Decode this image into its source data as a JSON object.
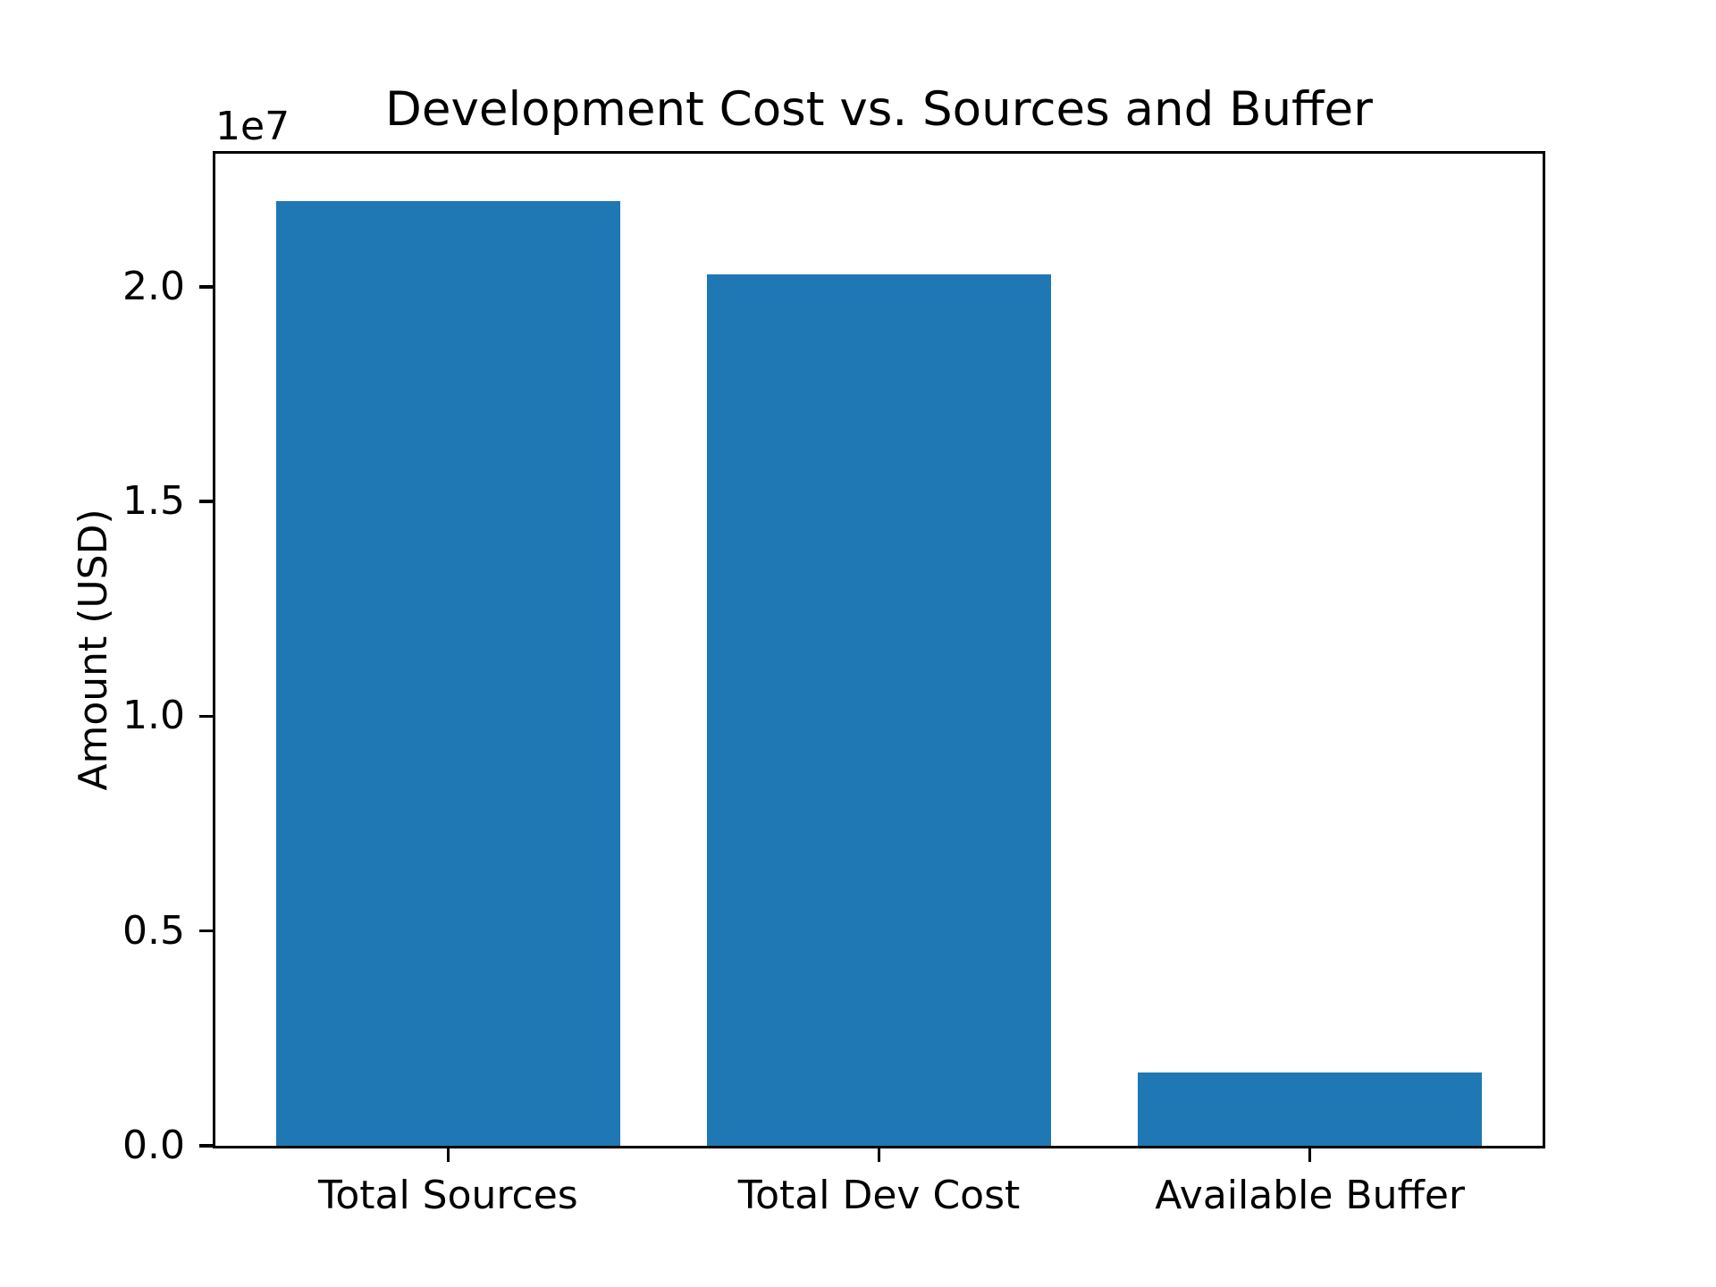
{
  "figure": {
    "background": "#ffffff",
    "text_color": "#000000"
  },
  "chart_data": {
    "type": "bar",
    "title": "Development Cost vs. Sources and Buffer",
    "xlabel": "",
    "ylabel": "Amount (USD)",
    "axis_offset_label": "1e7",
    "categories": [
      "Total Sources",
      "Total Dev Cost",
      "Available Buffer"
    ],
    "values": [
      22000000,
      20300000,
      1700000
    ],
    "bar_color": "#1f77b4",
    "bar_width_units": 0.8,
    "ylim": [
      0,
      23100000
    ],
    "xlim": [
      -0.54,
      2.54
    ],
    "ytick_values": [
      0,
      5000000,
      10000000,
      15000000,
      20000000
    ],
    "ytick_labels": [
      "0.0",
      "0.5",
      "1.0",
      "1.5",
      "2.0"
    ],
    "grid": false,
    "legend_position": "none"
  }
}
